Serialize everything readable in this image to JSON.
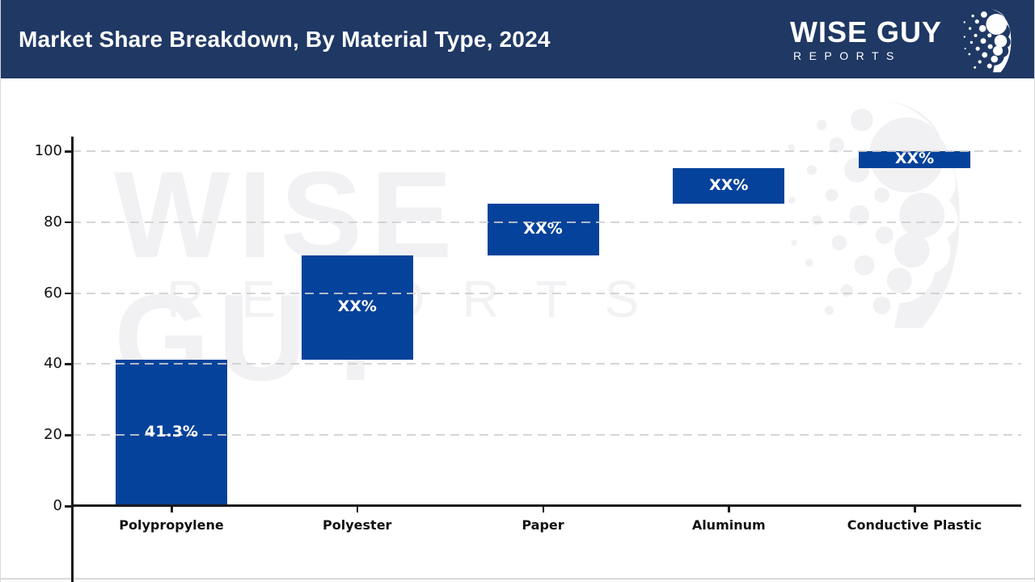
{
  "header": {
    "title": "Market Share Breakdown, By Material Type, 2024",
    "logo": {
      "line1": "WISE GUY",
      "line2": "REPORTS"
    }
  },
  "watermark": {
    "line1": "WISE GUY",
    "line2": "REPORTS"
  },
  "chart_data": {
    "type": "bar",
    "subtype": "waterfall",
    "title": "Market Share Breakdown, By Material Type, 2024",
    "categories": [
      "Polypropylene",
      "Polyester",
      "Paper",
      "Aluminum",
      "Conductive Plastic"
    ],
    "segments": [
      {
        "category": "Polypropylene",
        "start": 0,
        "end": 41.3,
        "label": "41.3%"
      },
      {
        "category": "Polyester",
        "start": 41.3,
        "end": 70.7,
        "label": "XX%"
      },
      {
        "category": "Paper",
        "start": 70.7,
        "end": 85.3,
        "label": "XX%"
      },
      {
        "category": "Aluminum",
        "start": 85.3,
        "end": 95.3,
        "label": "XX%"
      },
      {
        "category": "Conductive Plastic",
        "start": 95.3,
        "end": 100,
        "label": "XX%"
      }
    ],
    "xlabel": "",
    "ylabel": "",
    "ylim": [
      0,
      100
    ],
    "yticks": [
      0,
      20,
      40,
      60,
      80,
      100
    ],
    "grid": "horizontal-dashed",
    "legend": "none",
    "colors": {
      "bar": "#05429b",
      "bar_label": "#ffffff",
      "header_bg": "#1f3864",
      "grid_line": "#d9d9d9",
      "axis_line": "#1a1a1a",
      "tick_label": "#111111"
    }
  }
}
